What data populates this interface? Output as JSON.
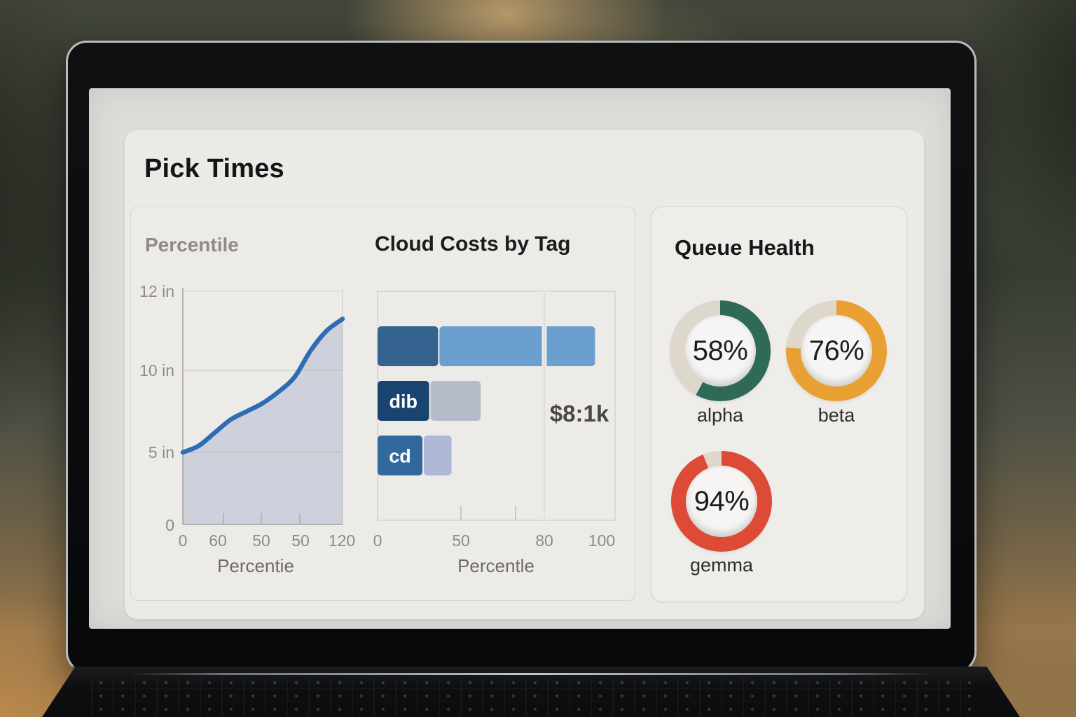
{
  "header": {
    "title": "Pick Times"
  },
  "chart_data": [
    {
      "type": "line",
      "title": "Percentile",
      "xlabel": "Percentie",
      "ylabel": "",
      "xticks": [
        "0",
        "60",
        "50",
        "50",
        "120"
      ],
      "yticks": [
        "12 in",
        "10 in",
        "5 in",
        "0"
      ],
      "xlim": [
        0,
        120
      ],
      "ylim": [
        0,
        12
      ],
      "grid": true,
      "line_color": "#2e6db4",
      "fill_color": "rgba(125,145,185,0.28)",
      "x": [
        0,
        12,
        24,
        36,
        48,
        60,
        72,
        84,
        96,
        108,
        120
      ],
      "y": [
        5.0,
        5.4,
        6.2,
        7.0,
        7.5,
        8.0,
        8.7,
        9.6,
        10.5,
        11.0,
        11.3
      ]
    },
    {
      "type": "bar",
      "orientation": "horizontal",
      "title": "Cloud Costs by Tag",
      "xlabel": "Percentle",
      "xticks": [
        "0",
        "50",
        "80",
        "100"
      ],
      "xlim": [
        0,
        100
      ],
      "annotation": "$8:1k",
      "bars": [
        {
          "label": "",
          "segments": [
            {
              "value": 27,
              "color": "#33638e"
            },
            {
              "value": 70,
              "color": "#6b9fd0"
            }
          ]
        },
        {
          "label": "dib",
          "segments": [
            {
              "value": 23,
              "color": "#1a4470"
            },
            {
              "value": 23,
              "color": "#b5bcc9"
            }
          ]
        },
        {
          "label": "cd",
          "segments": [
            {
              "value": 20,
              "color": "#32699c"
            },
            {
              "value": 13,
              "color": "#aeb9d8"
            }
          ]
        }
      ]
    },
    {
      "type": "donut",
      "title": "Queue Health",
      "track_color": "#ddd7cc",
      "gauges": [
        {
          "label": "alpha",
          "percent": 58,
          "display": "58%",
          "color": "#2e6a57"
        },
        {
          "label": "beta",
          "percent": 76,
          "display": "76%",
          "color": "#e9a032"
        },
        {
          "label": "gemma",
          "percent": 94,
          "display": "94%",
          "color": "#dd4a36"
        }
      ]
    }
  ]
}
